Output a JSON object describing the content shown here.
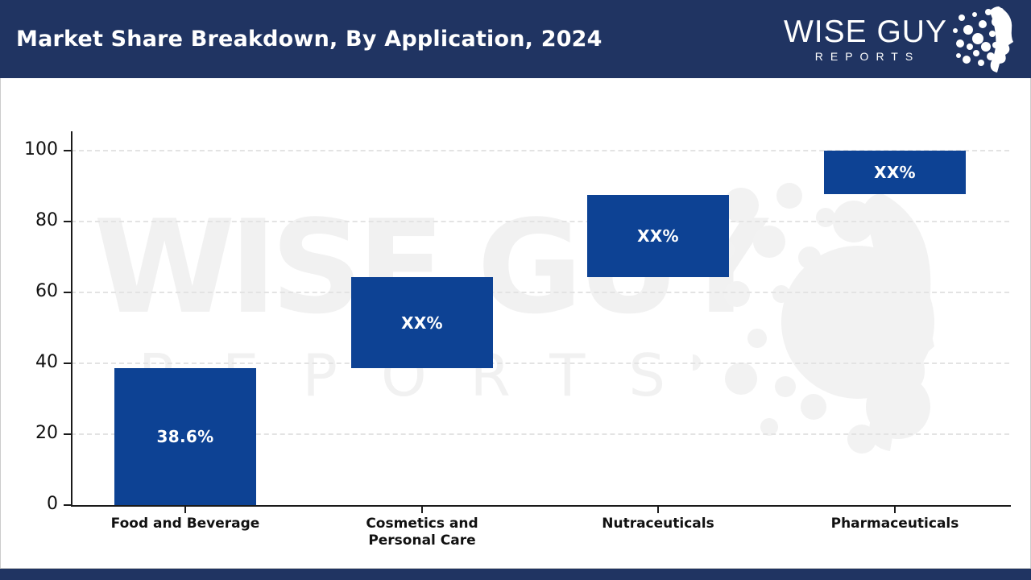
{
  "header": {
    "title": "Market Share Breakdown, By Application, 2024",
    "logo": {
      "name": "WISE GUY",
      "subtitle": "REPORTS"
    }
  },
  "watermark": {
    "name": "WISE GUY",
    "subtitle": "REPORTS"
  },
  "chart_data": {
    "type": "bar",
    "variant": "floating-segment waterfall of market share percentages",
    "title": "Market Share Breakdown, By Application, 2024",
    "categories": [
      "Food and Beverage",
      "Cosmetics and Personal Care",
      "Nutraceuticals",
      "Pharmaceuticals"
    ],
    "bars": [
      {
        "category": "Food and Beverage",
        "from": 0,
        "to": 38.6,
        "label": "38.6%"
      },
      {
        "category": "Cosmetics and Personal Care",
        "from": 38.6,
        "to": 64.3,
        "label": "XX%"
      },
      {
        "category": "Nutraceuticals",
        "from": 64.3,
        "to": 87.5,
        "label": "XX%"
      },
      {
        "category": "Pharmaceuticals",
        "from": 87.7,
        "to": 100,
        "label": "XX%"
      }
    ],
    "yticks": [
      0,
      20,
      40,
      60,
      80,
      100
    ],
    "ylim": [
      0,
      105
    ],
    "xlabel": "",
    "ylabel": "",
    "grid": "horizontal dashed, behind bars",
    "legend": "none",
    "bar_color": "#0d4294",
    "bar_label_color": "#ffffff"
  },
  "colors": {
    "header_bg": "#203462",
    "footer_bg": "#203462",
    "bar": "#0d4294",
    "watermark": "#f1f1f1",
    "grid": "#e3e3e3",
    "axis": "#1a1a1a",
    "frame_border": "#cccccc"
  }
}
